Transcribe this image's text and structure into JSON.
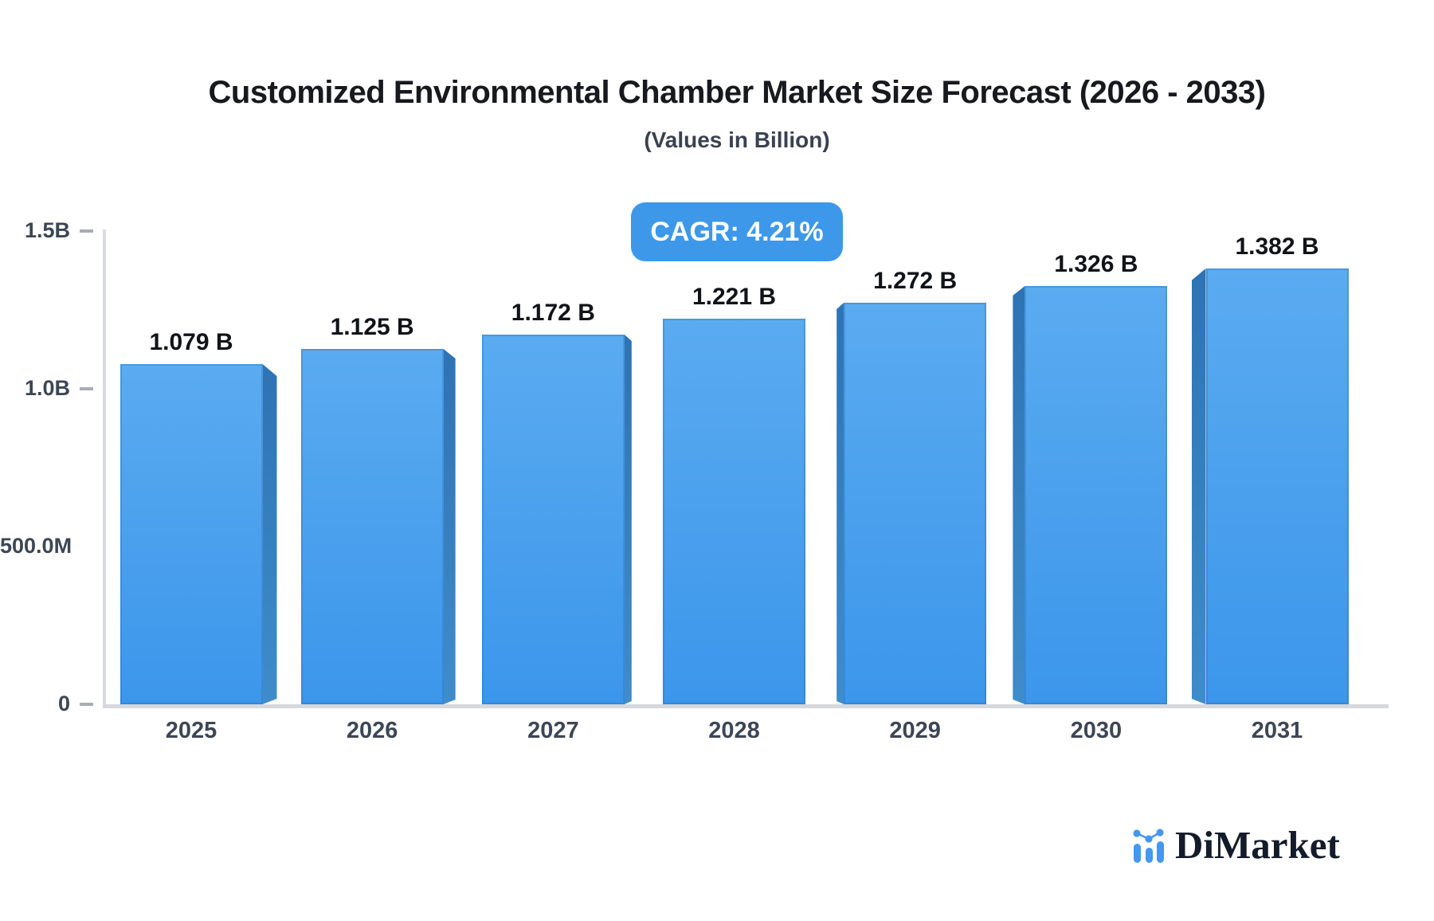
{
  "chart_data": {
    "type": "bar",
    "title": "Customized Environmental Chamber Market Size Forecast (2026 - 2033)",
    "subtitle": "(Values in Billion)",
    "annotation": "CAGR: 4.21%",
    "categories": [
      "2025",
      "2026",
      "2027",
      "2028",
      "2029",
      "2030",
      "2031"
    ],
    "values": [
      1.079,
      1.125,
      1.172,
      1.221,
      1.272,
      1.326,
      1.382
    ],
    "value_labels": [
      "1.079 B",
      "1.125 B",
      "1.172 B",
      "1.221 B",
      "1.272 B",
      "1.326 B",
      "1.382 B"
    ],
    "yticks": [
      {
        "value": 1.5,
        "label": "1.5B",
        "dash": true
      },
      {
        "value": 1.0,
        "label": "1.0B",
        "dash": true
      },
      {
        "value": 0.5,
        "label": "500.0M",
        "dash": false
      },
      {
        "value": 0,
        "label": "0",
        "dash": true
      }
    ],
    "ylim": [
      0,
      1.5
    ],
    "xlabel": "",
    "ylabel": "",
    "grid": false,
    "legend": "none"
  },
  "colors": {
    "bar_top": "#5aabf0",
    "bar_bottom": "#3c96eb",
    "bar_side": "#2e73b4",
    "badge_blue": "#3d98ea",
    "axis_gray": "#d5d8dd",
    "tick_text": "#3d4654",
    "title_text": "#17191e",
    "logo_navy": "#141b2b",
    "logo_blue": "#4597f0"
  },
  "footer": {
    "logo_text": "DiMarket"
  }
}
